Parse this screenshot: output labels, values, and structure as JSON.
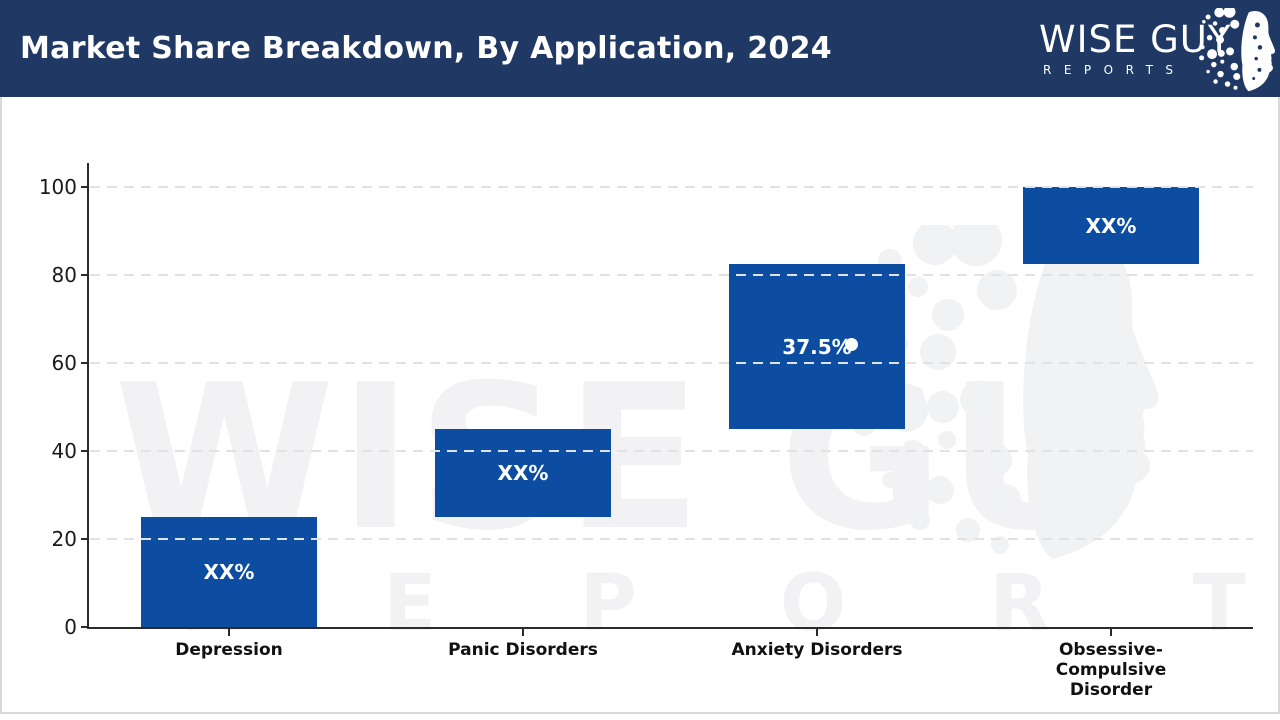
{
  "header": {
    "title": "Market Share Breakdown, By Application, 2024",
    "background_color": "#203864",
    "logo": {
      "line1": "WISE GUY",
      "line2": "REPORTS"
    }
  },
  "watermark": {
    "line1": "WISE GU",
    "line2": "R E P O R T S"
  },
  "chart_data": {
    "type": "bar",
    "subtype": "floating-segment-waterfall",
    "title": "Market Share Breakdown, By Application, 2024",
    "categories": [
      "Depression",
      "Panic Disorders",
      "Anxiety Disorders",
      "Obsessive-Compulsive Disorder"
    ],
    "category_display_lines": [
      [
        "Depression"
      ],
      [
        "Panic Disorders"
      ],
      [
        "Anxiety Disorders"
      ],
      [
        "Obsessive-",
        "Compulsive",
        "Disorder"
      ]
    ],
    "segments": [
      {
        "category": "Depression",
        "start": 0,
        "end": 25,
        "label": "XX%"
      },
      {
        "category": "Panic Disorders",
        "start": 25,
        "end": 45,
        "label": "XX%"
      },
      {
        "category": "Anxiety Disorders",
        "start": 45,
        "end": 82.5,
        "label": "37.5%"
      },
      {
        "category": "Obsessive-Compulsive Disorder",
        "start": 82.5,
        "end": 100,
        "label": "XX%"
      }
    ],
    "yticks": [
      0,
      20,
      40,
      60,
      80,
      100
    ],
    "ylim": [
      0,
      105
    ],
    "xlabel": "",
    "ylabel": "",
    "grid": "horizontal-dashed",
    "legend": "none",
    "bar_color": "#0c4da2",
    "bar_label_color": "#ffffff"
  }
}
